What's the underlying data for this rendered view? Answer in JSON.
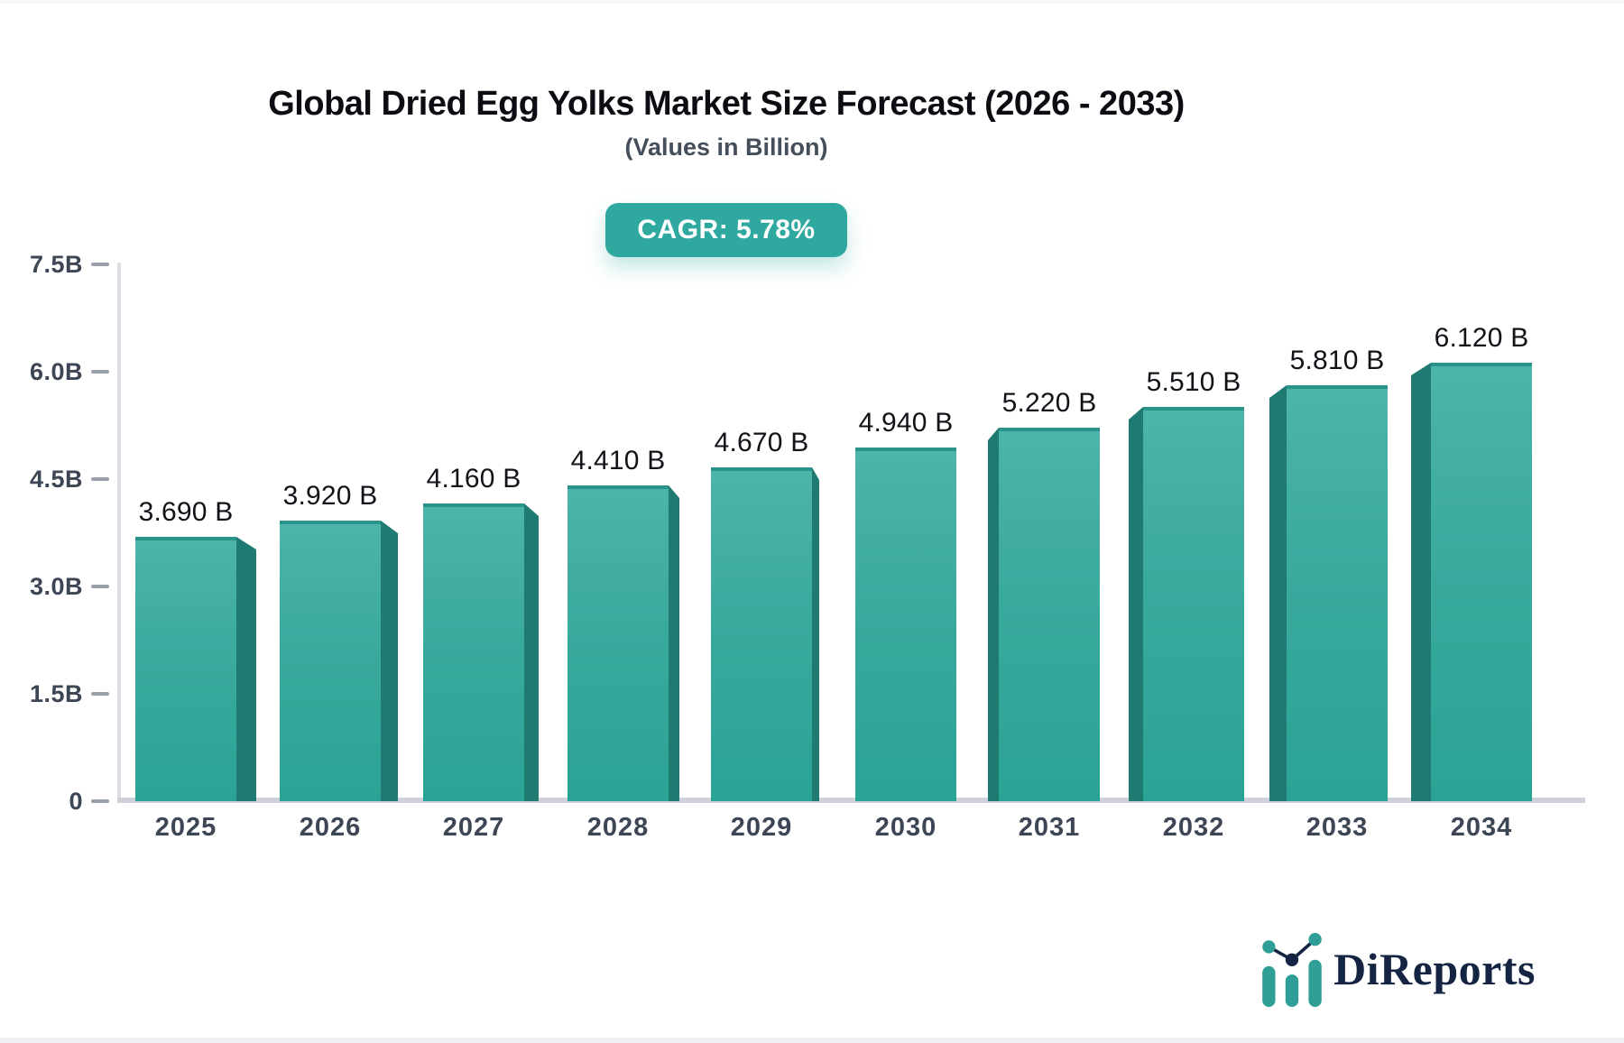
{
  "header": {
    "title": "Global Dried Egg Yolks Market Size Forecast (2026 - 2033)",
    "subtitle": "(Values in Billion)",
    "cagr_label": "CAGR: 5.78%"
  },
  "logo": {
    "text": "DiReports"
  },
  "colors": {
    "bar_front_top": "#4db4a9",
    "bar_front_bottom": "#2aa396",
    "bar_side": "#1f7a72",
    "badge_bg": "#2fa8a0",
    "badge_text": "#ffffff",
    "axis_text": "#3d4654",
    "logo_navy": "#152442",
    "logo_teal": "#2f9e96"
  },
  "chart_data": {
    "type": "bar",
    "title": "Global Dried Egg Yolks Market Size Forecast (2026 - 2033)",
    "subtitle": "(Values in Billion)",
    "cagr": "5.78%",
    "unit": "Billion",
    "categories": [
      "2025",
      "2026",
      "2027",
      "2028",
      "2029",
      "2030",
      "2031",
      "2032",
      "2033",
      "2034"
    ],
    "values": [
      3.69,
      3.92,
      4.16,
      4.41,
      4.67,
      4.94,
      5.22,
      5.51,
      5.81,
      6.12
    ],
    "bar_labels": [
      "3.690 B",
      "3.920 B",
      "4.160 B",
      "4.410 B",
      "4.670 B",
      "4.940 B",
      "5.220 B",
      "5.510 B",
      "5.810 B",
      "6.120 B"
    ],
    "xlabel": "",
    "ylabel": "",
    "ylim": [
      0,
      7.5
    ],
    "grid": false,
    "legend_position": "none",
    "yticks": [
      {
        "label": "7.5B",
        "value": 7.5
      },
      {
        "label": "6.0B",
        "value": 6.0
      },
      {
        "label": "4.5B",
        "value": 4.5
      },
      {
        "label": "3.0B",
        "value": 3.0
      },
      {
        "label": "1.5B",
        "value": 1.5
      },
      {
        "label": "0",
        "value": 0
      }
    ]
  }
}
